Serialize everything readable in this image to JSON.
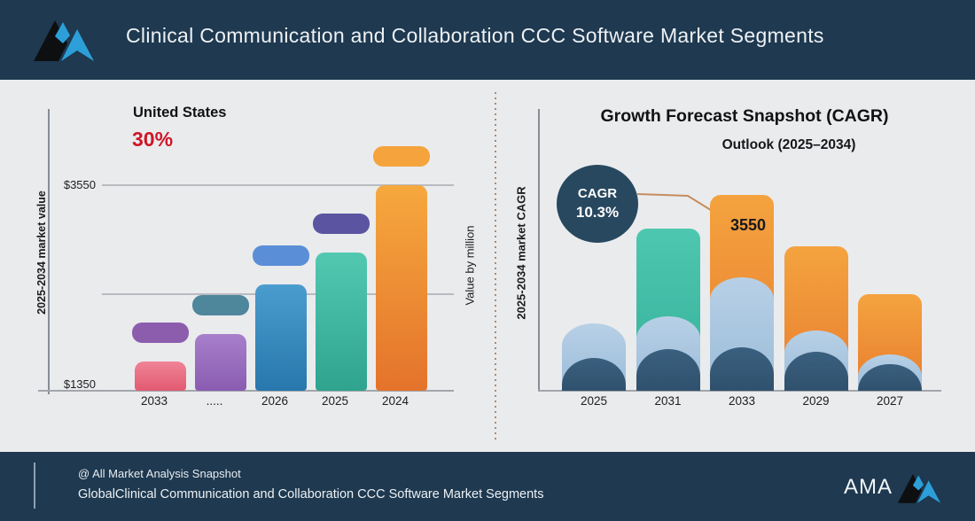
{
  "header": {
    "title": "Clinical Communication and Collaboration CCC Software Market Segments",
    "brand": "AMA"
  },
  "left_chart": {
    "region": "United States",
    "percent": "30%",
    "y_axis_label": "2025-2034 market value",
    "value_axis_label": "Value by million",
    "tick_top": "$3550",
    "tick_bottom": "$1350",
    "bars": [
      {
        "category": "2033",
        "value": 1600,
        "bar_top": "#ef8496",
        "bar_bottom": "#e25a71",
        "cap_color": "#8d5dad"
      },
      {
        "category": ".....",
        "value": 1900,
        "bar_top": "#a77fcb",
        "bar_bottom": "#8a5cb1",
        "cap_color": "#4e869c"
      },
      {
        "category": "2026",
        "value": 2450,
        "bar_top": "#4a9cce",
        "bar_bottom": "#2877ad",
        "cap_color": "#5a8fd7"
      },
      {
        "category": "2025",
        "value": 2800,
        "bar_top": "#52c8b1",
        "bar_bottom": "#2fa38e",
        "cap_color": "#5b55a1"
      },
      {
        "category": "2024",
        "value": 3550,
        "bar_top": "#f6a83e",
        "bar_bottom": "#e4732b",
        "cap_color": "#f5a33c"
      }
    ]
  },
  "right_chart": {
    "title": "Growth Forecast Snapshot (CAGR)",
    "subtitle": "Outlook (2025–2034)",
    "y_axis_label": "2025-2034 market CAGR",
    "badge_label": "CAGR",
    "badge_value": "10.3%",
    "data_label": "3550",
    "colors": {
      "base": "#2f516d",
      "base_light": "#3a607f",
      "middle": "#b7d0e6",
      "middle_dark": "#9cbcd9",
      "teal": "#4ec7b0",
      "teal_dark": "#35b099",
      "orange": "#f4a33f",
      "orange_dark": "#e87e2f"
    },
    "bars": [
      {
        "category": "2025",
        "base": 600,
        "middle": 630,
        "top": 0,
        "top_color": null
      },
      {
        "category": "2031",
        "base": 760,
        "middle": 600,
        "top": 1600,
        "top_color": "teal"
      },
      {
        "category": "2033",
        "base": 790,
        "middle": 1270,
        "top": 1500,
        "top_color": "orange"
      },
      {
        "category": "2029",
        "base": 710,
        "middle": 390,
        "top": 1530,
        "top_color": "orange"
      },
      {
        "category": "2027",
        "base": 480,
        "middle": 180,
        "top": 1100,
        "top_color": "orange"
      }
    ]
  },
  "footer": {
    "line1": "@ All Market Analysis Snapshot",
    "line2": "GlobalClinical Communication and Collaboration CCC Software Market Segments",
    "brand": "AMA"
  },
  "chart_data": [
    {
      "type": "bar",
      "title": "United States 30%",
      "categories": [
        "2033",
        ".....",
        "2026",
        "2025",
        "2024"
      ],
      "values": [
        1600,
        1900,
        2450,
        2800,
        3550
      ],
      "xlabel": "",
      "ylabel": "2025-2034 market value",
      "ylabel_right": "Value by million",
      "y_ticks_labeled": [
        "$1350",
        "$3550"
      ],
      "ylim": [
        1350,
        3950
      ],
      "grid": true,
      "legend": false,
      "annotation": "United States 30% (red highlight)"
    },
    {
      "type": "bar",
      "title": "Growth Forecast Snapshot (CAGR)",
      "subtitle": "Outlook (2025–2034)",
      "categories": [
        "2025",
        "2031",
        "2033",
        "2029",
        "2027"
      ],
      "series": [
        {
          "name": "base (navy)",
          "values": [
            600,
            760,
            790,
            710,
            480
          ]
        },
        {
          "name": "middle (light blue)",
          "values": [
            630,
            600,
            1270,
            390,
            180
          ]
        },
        {
          "name": "top (teal/orange)",
          "values": [
            0,
            1600,
            1500,
            1530,
            1100
          ]
        }
      ],
      "totals": [
        1230,
        2960,
        3550,
        2630,
        1760
      ],
      "ylabel": "2025-2034 market CAGR",
      "annotations": [
        "CAGR 10.3% badge linked to 2033 bar",
        "3550 label on 2033 bar"
      ],
      "grid": false,
      "legend": false
    }
  ]
}
